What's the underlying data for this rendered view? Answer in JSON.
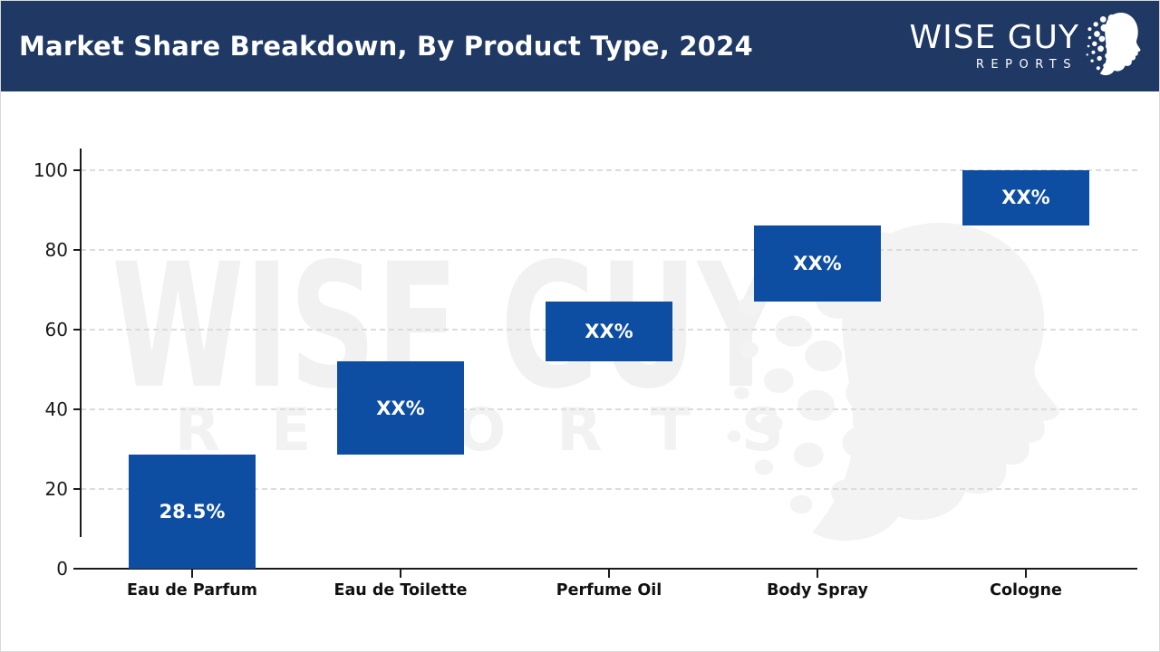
{
  "header": {
    "logo": {
      "line1": "WISE GUY",
      "line2": "REPORTS"
    }
  },
  "watermark": {
    "line1": "WISE GUY",
    "line2": "REPORTS"
  },
  "colors": {
    "header_bg": "#1F3864",
    "bar": "#0D4DA2",
    "bar_label": "#FFFFFF",
    "grid": "#DCDCDC",
    "axis": "#1A1A1A",
    "watermark": "#F1F1F1"
  },
  "chart_data": {
    "type": "bar",
    "subtype": "waterfall",
    "title": "Market Share Breakdown, By Product Type, 2024",
    "categories": [
      "Eau de Parfum",
      "Eau de Toilette",
      "Perfume Oil",
      "Body Spray",
      "Cologne"
    ],
    "segments": [
      {
        "category": "Eau de Parfum",
        "start": 0,
        "end": 28.5,
        "label": "28.5%"
      },
      {
        "category": "Eau de Toilette",
        "start": 28.5,
        "end": 52,
        "label": "XX%"
      },
      {
        "category": "Perfume Oil",
        "start": 52,
        "end": 67,
        "label": "XX%"
      },
      {
        "category": "Body Spray",
        "start": 67,
        "end": 86,
        "label": "XX%"
      },
      {
        "category": "Cologne",
        "start": 86,
        "end": 100,
        "label": "XX%"
      }
    ],
    "xlabel": "",
    "ylabel": "",
    "ylim": [
      0,
      100
    ],
    "yticks": [
      0,
      20,
      40,
      60,
      80,
      100
    ],
    "grid": "horizontal-dashed",
    "legend": "none"
  }
}
